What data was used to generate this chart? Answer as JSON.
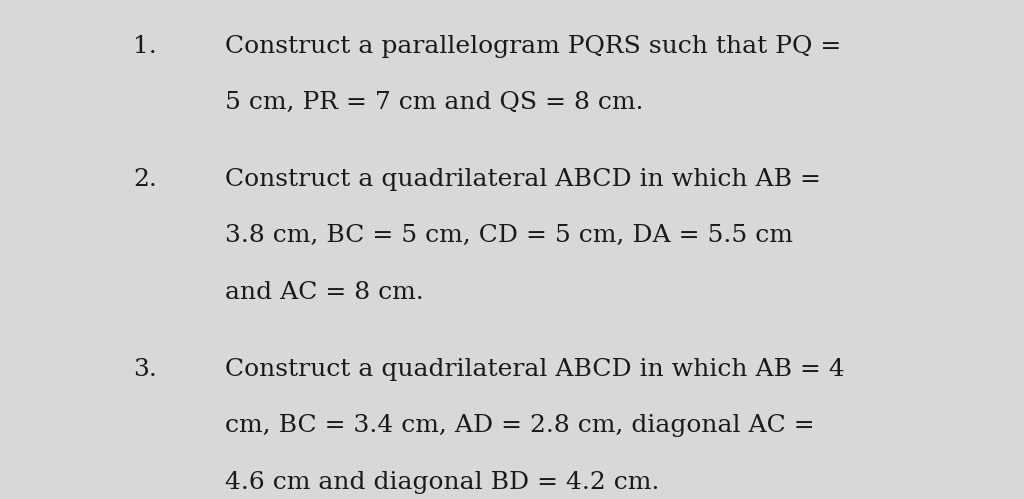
{
  "background_color": "#d8d8d8",
  "text_color": "#1a1a1a",
  "items": [
    {
      "number": "1.",
      "lines": [
        "Construct a parallelogram PQRS such that PQ =",
        "5 cm, PR = 7 cm and QS = 8 cm."
      ]
    },
    {
      "number": "2.",
      "lines": [
        "Construct a quadrilateral ABCD in which AB =",
        "3.8 cm, BC = 5 cm, CD = 5 cm, DA = 5.5 cm",
        "and AC = 8 cm."
      ]
    },
    {
      "number": "3.",
      "lines": [
        "Construct a quadrilateral ABCD in which AB = 4",
        "cm, BC = 3.4 cm, AD = 2.8 cm, diagonal AC =",
        "4.6 cm and diagonal BD = 4.2 cm."
      ]
    }
  ],
  "font_size_number": 18,
  "font_size_text": 18,
  "font_family": "DejaVu Serif"
}
